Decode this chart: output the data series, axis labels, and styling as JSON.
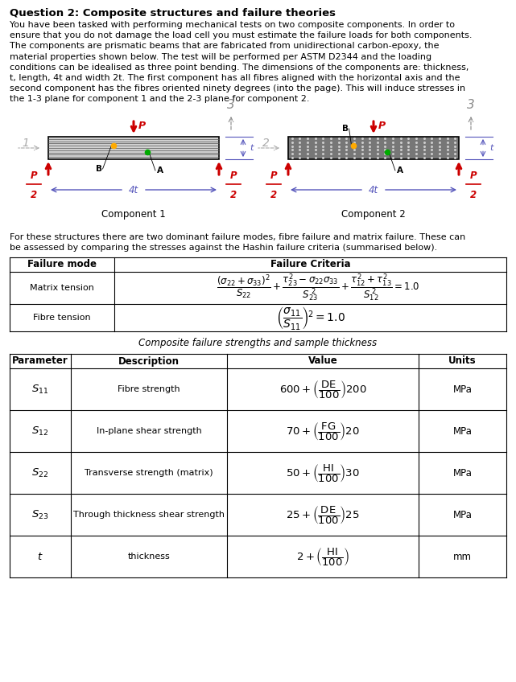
{
  "title": "Question 2: Composite structures and failure theories",
  "body_lines": [
    "You have been tasked with performing mechanical tests on two composite components. In order to",
    "ensure that you do not damage the load cell you must estimate the failure loads for both components.",
    "The components are prismatic beams that are fabricated from unidirectional carbon-epoxy, the",
    "material properties shown below. The test will be performed per ASTM D2344 and the loading",
    "conditions can be idealised as three point bending. The dimensions of the components are: thickness,",
    "t, length, 4t and width 2t. The first component has all fibres aligned with the horizontal axis and the",
    "second component has the fibres oriented ninety degrees (into the page). This will induce stresses in",
    "the 1-3 plane for component 1 and the 2-3 plane for component 2."
  ],
  "comp1_label": "Component 1",
  "comp2_label": "Component 2",
  "para2_lines": [
    "For these structures there are two dominant failure modes, fibre failure and matrix failure. These can",
    "be assessed by comparing the stresses against the Hashin failure criteria (summarised below)."
  ],
  "caption": "Composite failure strengths and sample thickness",
  "param_headers": [
    "Parameter",
    "Description",
    "Value",
    "Units"
  ],
  "descriptions": [
    "Fibre strength",
    "In-plane shear strength",
    "Transverse strength (matrix)",
    "Through thickness shear strength",
    "thickness"
  ],
  "units": [
    "MPa",
    "MPa",
    "MPa",
    "MPa",
    "mm"
  ],
  "bg_color": "#ffffff",
  "red_color": "#cc0000",
  "blue_color": "#5555bb",
  "gray_color": "#888888"
}
